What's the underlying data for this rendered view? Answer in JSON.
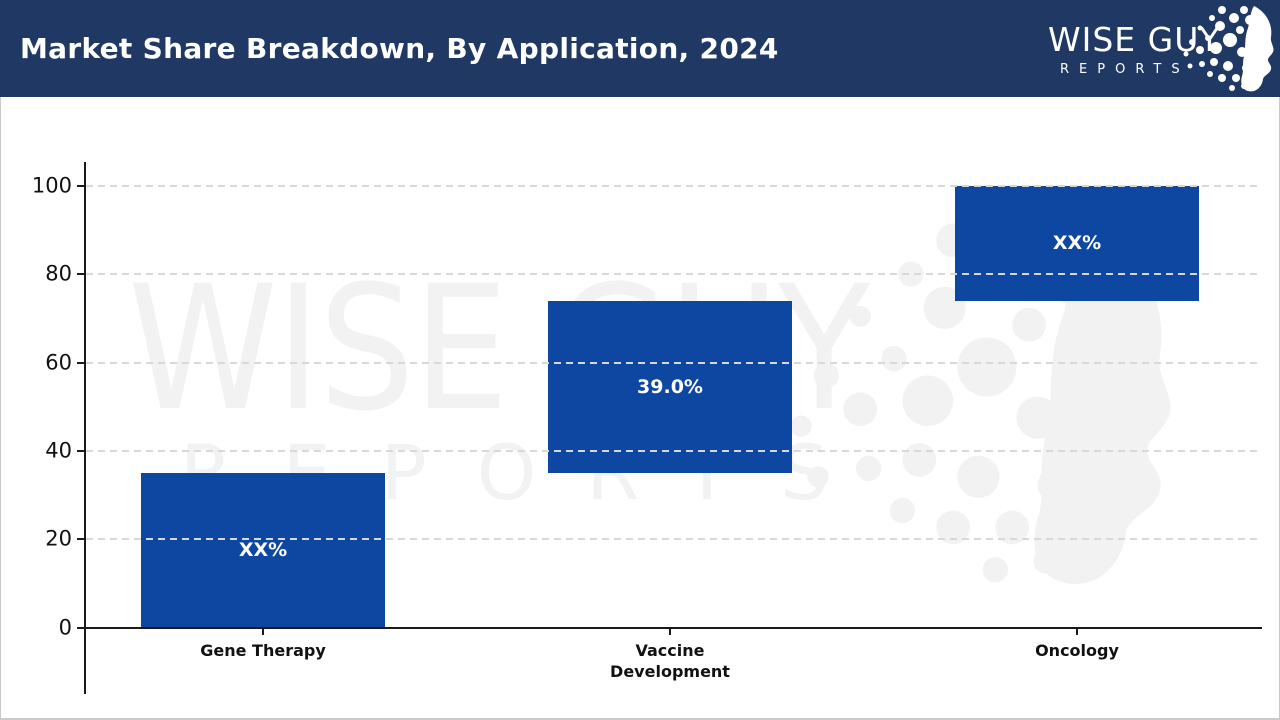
{
  "header": {
    "title": "Market Share Breakdown, By Application, 2024",
    "logo": {
      "wordmark": "WISE GUY",
      "subtext": "REPORTS"
    }
  },
  "watermark": {
    "wordmark": "WISE GUY",
    "subtext": "REPORTS"
  },
  "chart_data": {
    "type": "bar",
    "subtype": "floating-segment-waterfall",
    "title": "Market Share Breakdown, By Application, 2024",
    "categories": [
      "Gene Therapy",
      "Vaccine Development",
      "Oncology"
    ],
    "xtick_labels": [
      "Gene Therapy",
      "Vaccine\nDevelopment",
      "Oncology"
    ],
    "segments": [
      {
        "category": "Gene Therapy",
        "start": 0,
        "end": 35,
        "label": "XX%"
      },
      {
        "category": "Vaccine Development",
        "start": 35,
        "end": 74,
        "label": "39.0%"
      },
      {
        "category": "Oncology",
        "start": 74,
        "end": 100,
        "label": "XX%"
      }
    ],
    "xlabel": "",
    "ylabel": "",
    "yticks": [
      0,
      20,
      40,
      60,
      80,
      100
    ],
    "ylim": [
      0,
      105
    ],
    "grid": "horizontal-dashed",
    "legend": "none",
    "bar_color": "#0d47a1",
    "bar_label_color": "#ffffff",
    "axis_color": "#1a1a1a",
    "grid_color": "#d8d8d8",
    "tick_label_color": "#111111"
  },
  "colors": {
    "header_bg": "#203864",
    "page_bg": "#ffffff",
    "watermark": "#f2f2f2",
    "frame_border": "#c9c9c9"
  }
}
